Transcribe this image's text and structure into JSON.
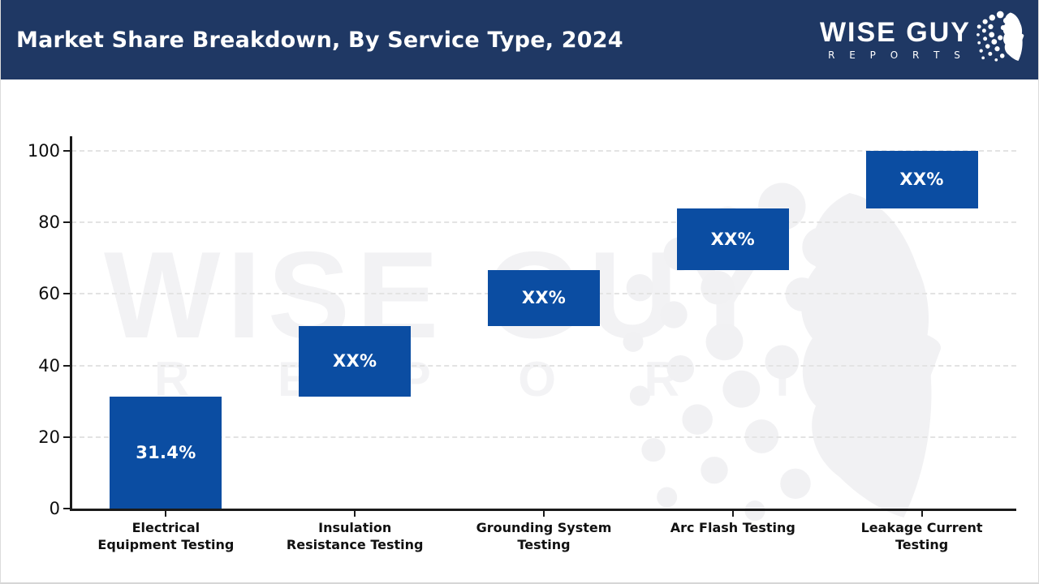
{
  "header": {
    "title": "Market Share Breakdown, By Service Type, 2024",
    "brand_line1": "WISE GUY",
    "brand_line2": "R E P O R T S"
  },
  "watermark": {
    "line1": "WISE GUY",
    "line2": "R E P O R T S"
  },
  "chart_data": {
    "type": "bar",
    "subtype": "waterfall",
    "title": "Market Share Breakdown, By Service Type, 2024",
    "xlabel": "",
    "ylabel": "",
    "ylim": [
      0,
      100
    ],
    "yticks": [
      0,
      20,
      40,
      60,
      80,
      100
    ],
    "grid": "horizontal-dashed",
    "legend": "none",
    "bar_color": "#0B4DA2",
    "bar_label_color": "#FFFFFF",
    "categories": [
      "Electrical\nEquipment Testing",
      "Insulation\nResistance Testing",
      "Grounding System\nTesting",
      "Arc Flash Testing",
      "Leakage Current\nTesting"
    ],
    "segments": [
      {
        "start": 0,
        "end": 31.4,
        "label": "31.4%"
      },
      {
        "start": 31.4,
        "end": 51.0,
        "label": "XX%"
      },
      {
        "start": 51.0,
        "end": 66.7,
        "label": "XX%"
      },
      {
        "start": 66.7,
        "end": 84.0,
        "label": "XX%"
      },
      {
        "start": 84.0,
        "end": 100.0,
        "label": "XX%"
      }
    ]
  },
  "colors": {
    "header_bg": "#1F3864",
    "bar": "#0B4DA2",
    "axis": "#1A1A1A",
    "gridline": "#E3E3E3",
    "watermark": "#F2F2F4"
  }
}
